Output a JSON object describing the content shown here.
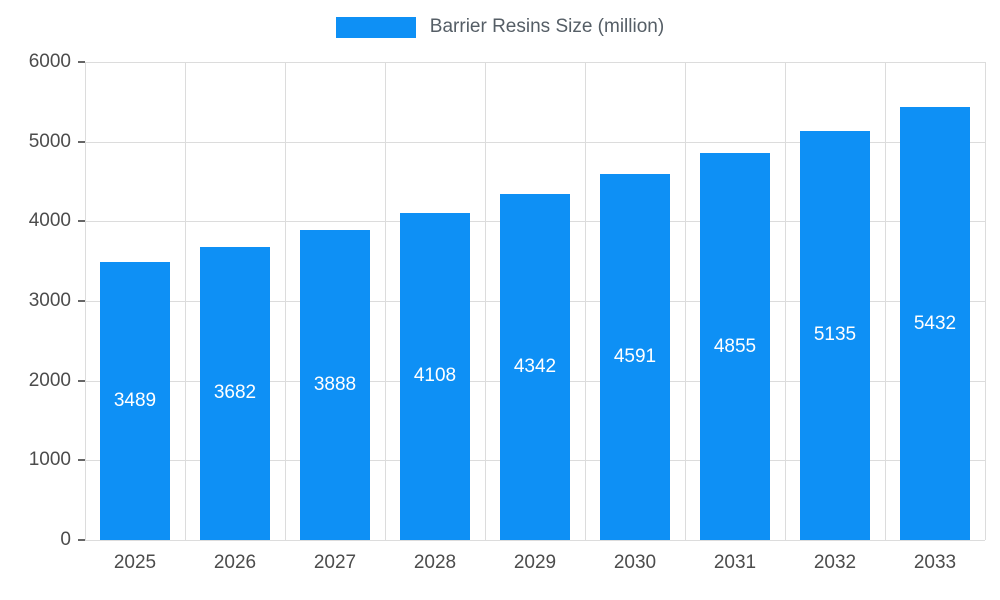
{
  "chart_data": {
    "type": "bar",
    "title": "Barrier Resins Size (million)",
    "legend": "Barrier Resins Size (million)",
    "legend_position": "top",
    "categories": [
      "2025",
      "2026",
      "2027",
      "2028",
      "2029",
      "2030",
      "2031",
      "2032",
      "2033"
    ],
    "series": [
      {
        "name": "Barrier Resins Size (million)",
        "values": [
          3489,
          3682,
          3888,
          4108,
          4342,
          4591,
          4855,
          5135,
          5432
        ]
      }
    ],
    "xlabel": "",
    "ylabel": "",
    "ylim": [
      0,
      6000
    ],
    "ytick_step": 1000,
    "yticks": [
      0,
      1000,
      2000,
      3000,
      4000,
      5000,
      6000
    ],
    "grid": true,
    "bar_color": "#0e90f5",
    "value_label_color": "#ffffff",
    "axis_text_color": "#4c4c4c",
    "gridline_color": "#dcdcdc",
    "background_color": "#ffffff"
  }
}
